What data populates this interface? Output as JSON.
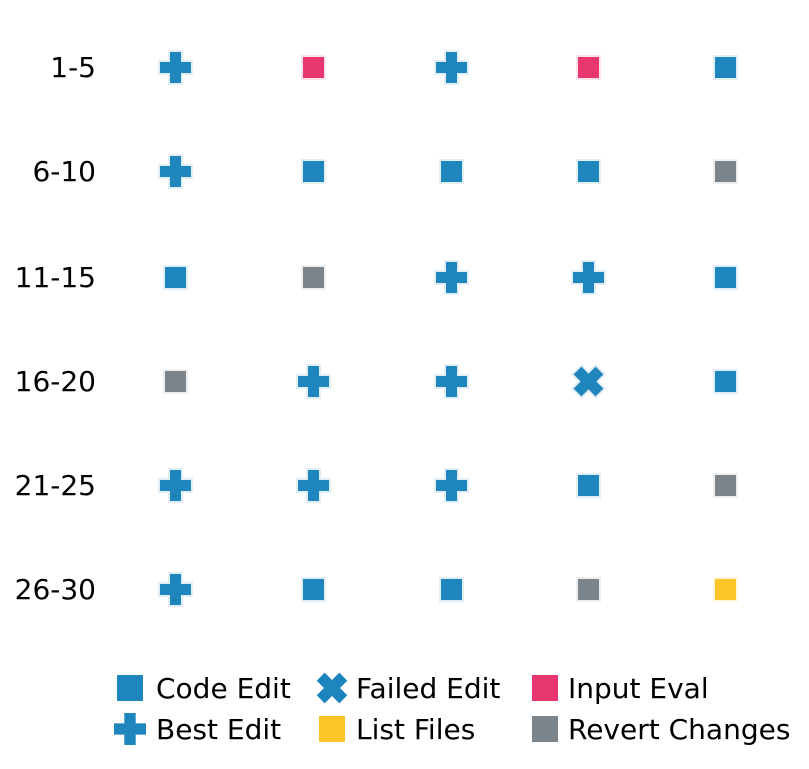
{
  "chart_data": {
    "type": "scatter",
    "title": "",
    "xlabel": "",
    "ylabel": "",
    "grid": false,
    "legend_position": "bottom",
    "background": "#ffffff",
    "row_axis": "problem groups",
    "col_count": 5,
    "rows": [
      {
        "label": "1-5",
        "actions": [
          "best_edit",
          "input_eval",
          "best_edit",
          "input_eval",
          "code_edit"
        ]
      },
      {
        "label": "6-10",
        "actions": [
          "best_edit",
          "code_edit",
          "code_edit",
          "code_edit",
          "revert_changes"
        ]
      },
      {
        "label": "11-15",
        "actions": [
          "code_edit",
          "revert_changes",
          "best_edit",
          "best_edit",
          "code_edit"
        ]
      },
      {
        "label": "16-20",
        "actions": [
          "revert_changes",
          "best_edit",
          "best_edit",
          "failed_edit",
          "code_edit"
        ]
      },
      {
        "label": "21-25",
        "actions": [
          "best_edit",
          "best_edit",
          "best_edit",
          "code_edit",
          "revert_changes"
        ]
      },
      {
        "label": "26-30",
        "actions": [
          "best_edit",
          "code_edit",
          "code_edit",
          "revert_changes",
          "list_files"
        ]
      }
    ],
    "legend": [
      {
        "key": "code_edit",
        "label": "Code Edit",
        "marker": "square",
        "color": "#1e85bd",
        "halo": "#e1eef7"
      },
      {
        "key": "failed_edit",
        "label": "Failed Edit",
        "marker": "x",
        "color": "#1e85bd",
        "halo": "#e1eef7"
      },
      {
        "key": "input_eval",
        "label": "Input Eval",
        "marker": "square",
        "color": "#e8376f",
        "halo": "#fce4ec"
      },
      {
        "key": "best_edit",
        "label": "Best Edit",
        "marker": "plus",
        "color": "#1e85bd",
        "halo": "#e1eef7"
      },
      {
        "key": "list_files",
        "label": "List Files",
        "marker": "square",
        "color": "#fdc428",
        "halo": "#fff6dc"
      },
      {
        "key": "revert_changes",
        "label": "Revert Changes",
        "marker": "square",
        "color": "#7b838b",
        "halo": "#eceef0"
      }
    ]
  }
}
